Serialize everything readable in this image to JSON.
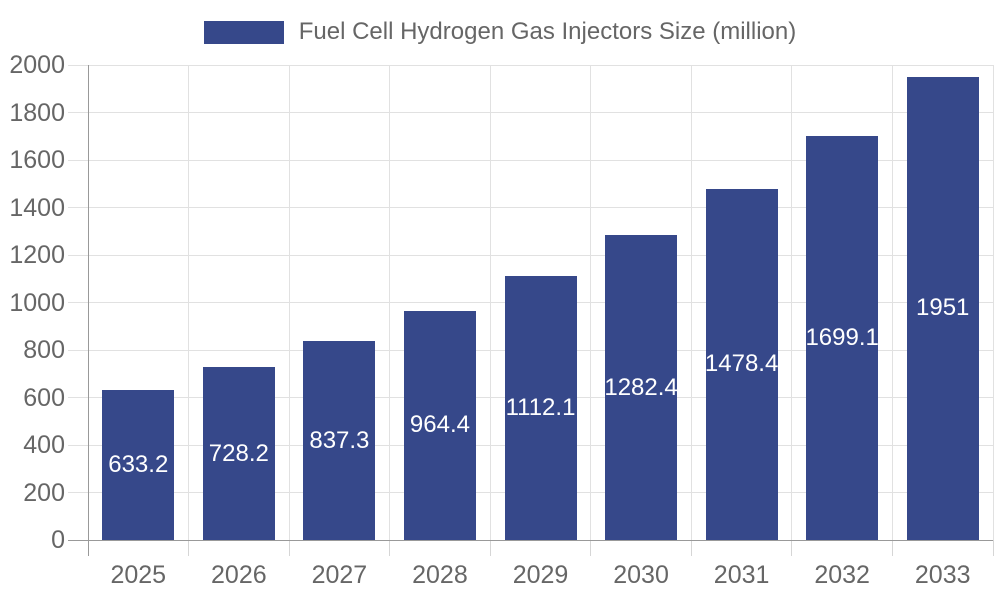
{
  "legend": {
    "label": "Fuel Cell Hydrogen Gas Injectors Size (million)"
  },
  "chart_data": {
    "type": "bar",
    "title": "",
    "categories": [
      "2025",
      "2026",
      "2027",
      "2028",
      "2029",
      "2030",
      "2031",
      "2032",
      "2033"
    ],
    "series": [
      {
        "name": "Fuel Cell Hydrogen Gas Injectors Size (million)",
        "values": [
          633.2,
          728.2,
          837.3,
          964.4,
          1112.1,
          1282.4,
          1478.4,
          1699.1,
          1951
        ],
        "value_labels": [
          "633.2",
          "728.2",
          "837.3",
          "964.4",
          "1112.1",
          "1282.4",
          "1478.4",
          "1699.1",
          "1951"
        ]
      }
    ],
    "ylim": [
      0,
      2000
    ],
    "ytick_step": 200,
    "yticks": [
      "0",
      "200",
      "400",
      "600",
      "800",
      "1000",
      "1200",
      "1400",
      "1600",
      "1800",
      "2000"
    ],
    "grid": true,
    "legend_position": "top",
    "xlabel": "",
    "ylabel": "",
    "colors": {
      "bar": "#36488a",
      "bar_label": "#ffffff",
      "axis_text": "#666666",
      "legend_text": "#666666",
      "axis_line": "#999999",
      "gridline": "#e1e1e1",
      "tick": "#d6d6d6",
      "background": "#ffffff"
    }
  }
}
